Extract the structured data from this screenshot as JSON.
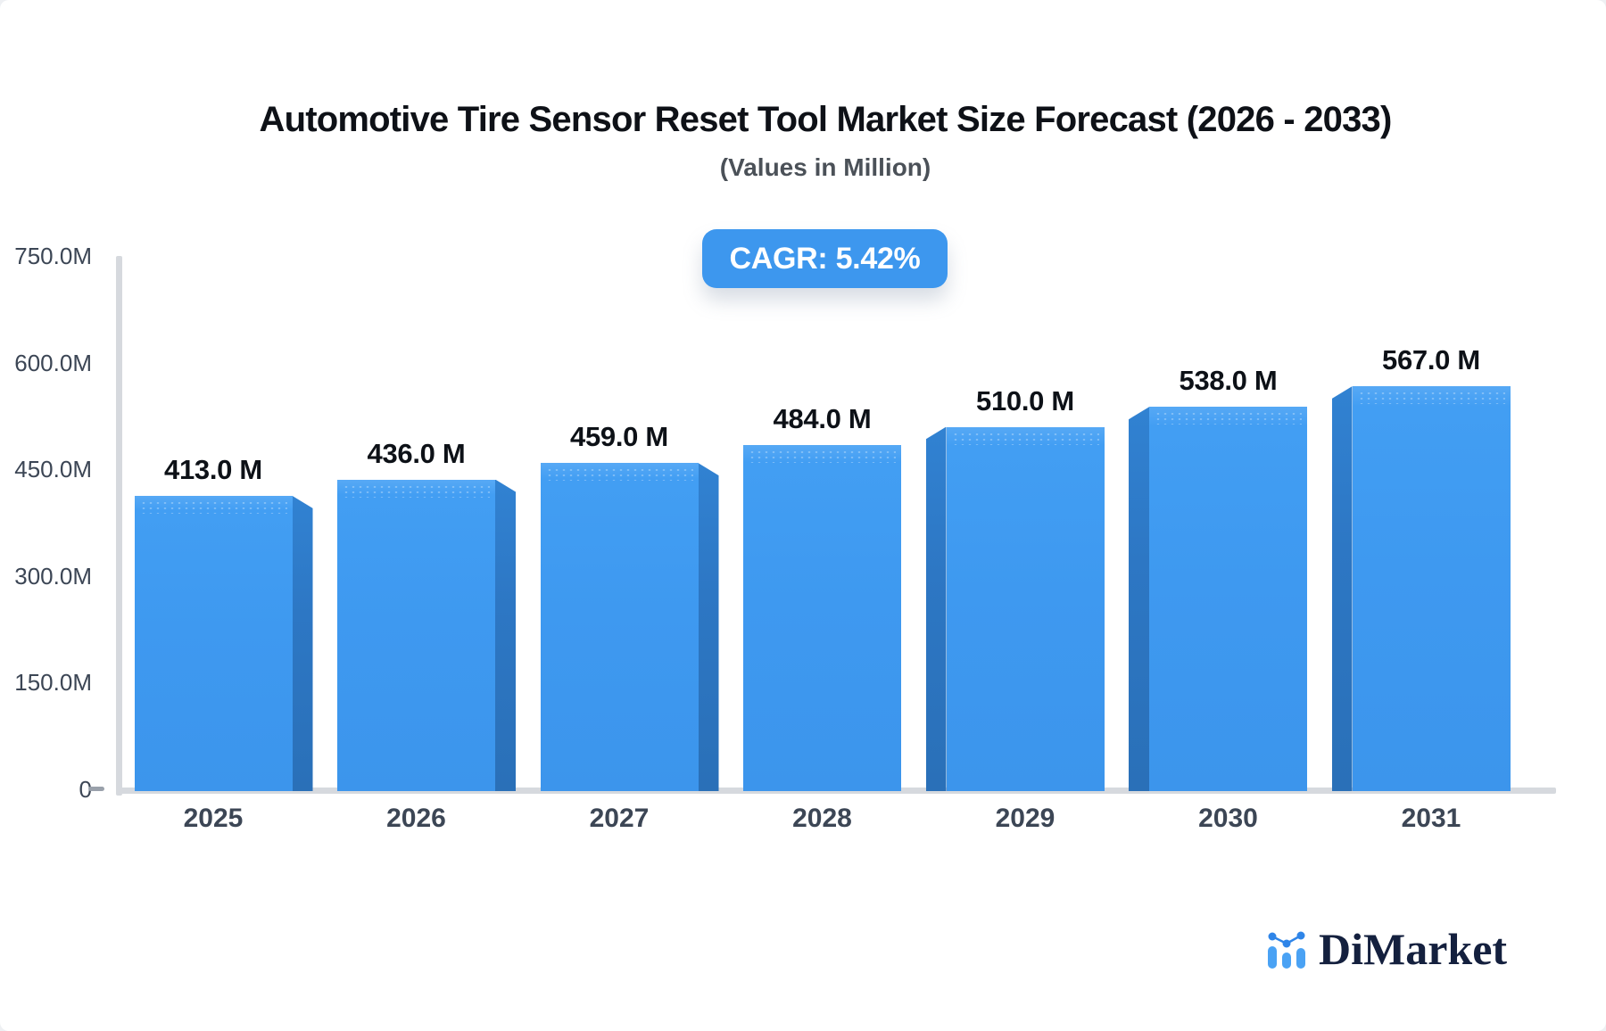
{
  "chart_data": {
    "type": "bar",
    "title": "Automotive Tire Sensor Reset Tool Market Size Forecast (2026 - 2033)",
    "subtitle": "(Values in Million)",
    "cagr_label": "CAGR: 5.42%",
    "unit": "Million",
    "categories": [
      "2025",
      "2026",
      "2027",
      "2028",
      "2029",
      "2030",
      "2031"
    ],
    "values": [
      413,
      436,
      459,
      484,
      510,
      538,
      567
    ],
    "value_labels": [
      "413.0 M",
      "436.0 M",
      "459.0 M",
      "484.0 M",
      "510.0 M",
      "538.0 M",
      "567.0 M"
    ],
    "y_ticks": [
      {
        "label": "0",
        "value": 0
      },
      {
        "label": "150.0M",
        "value": 150
      },
      {
        "label": "300.0M",
        "value": 300
      },
      {
        "label": "450.0M",
        "value": 450
      },
      {
        "label": "600.0M",
        "value": 600
      },
      {
        "label": "750.0M",
        "value": 750
      }
    ],
    "ylim": [
      0,
      750
    ],
    "grid": false,
    "legend": "none",
    "colors": {
      "bar_face": "#3f9af0",
      "bar_side": "#2d78c4",
      "axis": "#d6d9de",
      "tick_text": "#3c4655",
      "value_text": "#0d1117",
      "badge_bg": "#3d97ee",
      "badge_text": "#ffffff",
      "logo_blue": "#4aa2f4",
      "logo_navy": "#14203e"
    }
  },
  "branding": {
    "logo_text": "DiMarket",
    "logo_icon": "dimarket-bar-chart-icon"
  }
}
